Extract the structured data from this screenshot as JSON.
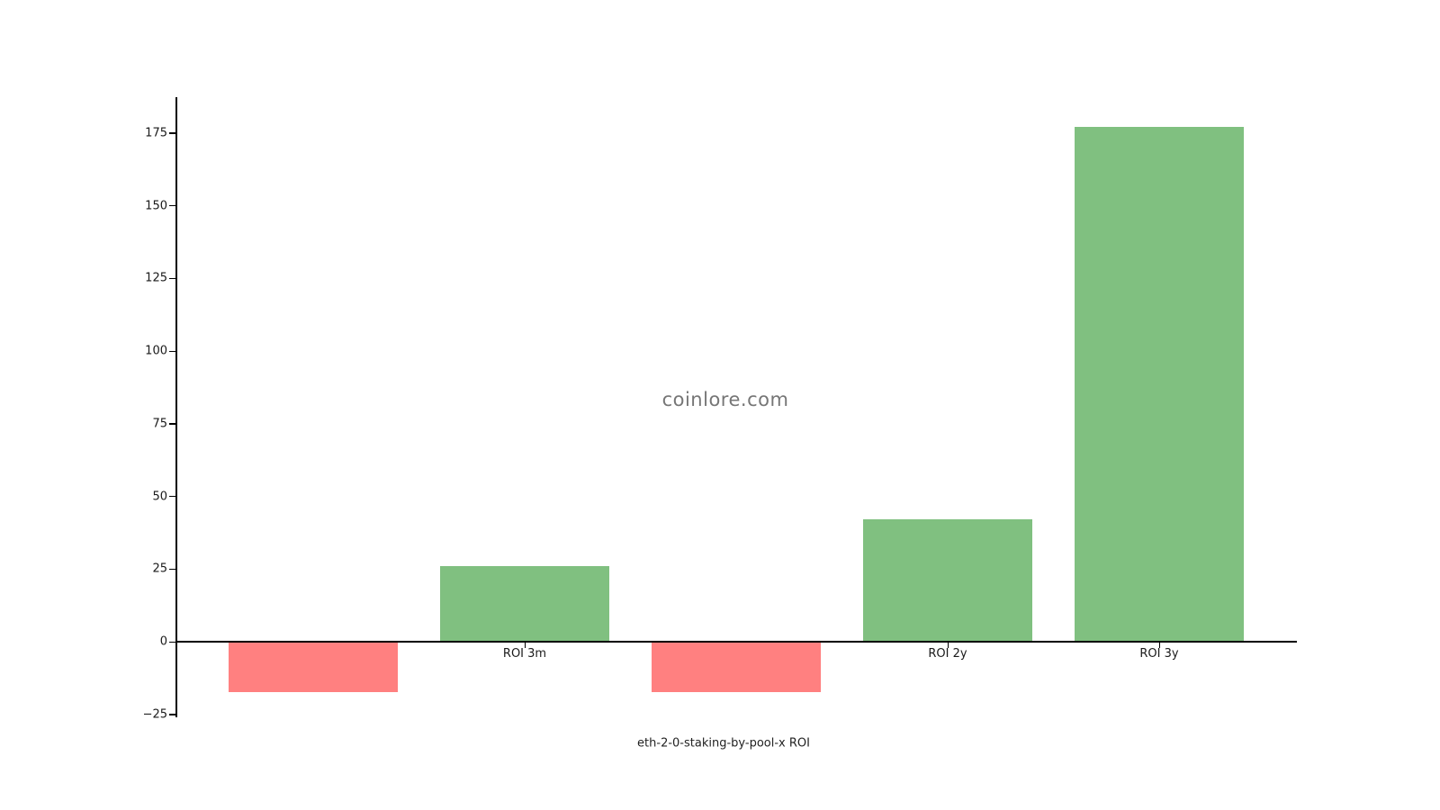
{
  "watermark": "coinlore.com",
  "chart_data": {
    "type": "bar",
    "title": "eth-2-0-staking-by-pool-x ROI",
    "title_position": "bottom-center",
    "categories": [
      "",
      "ROI 3m",
      "",
      "ROI 2y",
      "ROI 3y"
    ],
    "values": [
      -17,
      26,
      -17,
      42,
      177
    ],
    "bar_colors": [
      "#ff8080",
      "#80c080",
      "#ff8080",
      "#80c080",
      "#80c080"
    ],
    "positive_color": "#80c080",
    "negative_color": "#ff8080",
    "xlabel": "",
    "ylabel": "",
    "y_ticks": [
      -25,
      0,
      25,
      50,
      75,
      100,
      125,
      150,
      175
    ],
    "ylim": [
      -26,
      187
    ],
    "grid": false,
    "legend": null,
    "spines": [
      "left",
      "zero-baseline"
    ],
    "axis_color": "#000000",
    "tick_label_color": "#1a1a1a",
    "watermark_color": "#767676",
    "note_hidden_labels": "x tick labels of bars 1 and 3 are covered by the negative (red) bars and are not visible"
  }
}
